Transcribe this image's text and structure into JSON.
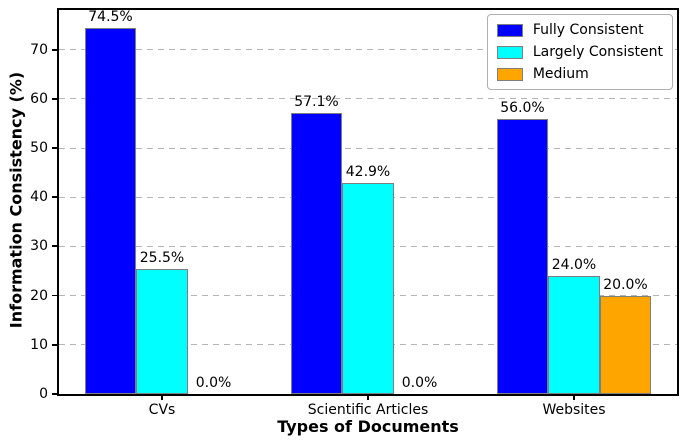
{
  "chart_data": {
    "type": "bar",
    "title": "",
    "xlabel": "Types of Documents",
    "ylabel": "Information Consistency (%)",
    "categories": [
      "CVs",
      "Scientific Articles",
      "Websites"
    ],
    "series": [
      {
        "name": "Fully Consistent",
        "color": "#0000ff",
        "values": [
          74.5,
          57.1,
          56.0
        ],
        "labels": [
          "74.5%",
          "57.1%",
          "56.0%"
        ]
      },
      {
        "name": "Largely Consistent",
        "color": "#00ffff",
        "values": [
          25.5,
          42.9,
          24.0
        ],
        "labels": [
          "25.5%",
          "42.9%",
          "24.0%"
        ]
      },
      {
        "name": "Medium",
        "color": "#ffa500",
        "values": [
          0.0,
          0.0,
          20.0
        ],
        "labels": [
          "0.0%",
          "0.0%",
          "20.0%"
        ]
      }
    ],
    "bar_edge_color": "#7f7f7f",
    "y_ticks": [
      0,
      10,
      20,
      30,
      40,
      50,
      60,
      70
    ],
    "y_tick_labels": [
      "0",
      "10",
      "20",
      "30",
      "40",
      "50",
      "60",
      "70"
    ],
    "ylim": [
      0,
      78.1
    ],
    "grid": {
      "axis": "y",
      "style": "dashed",
      "color": "#b5b5b5"
    },
    "legend": {
      "position": "upper right",
      "entries": [
        "Fully Consistent",
        "Largely Consistent",
        "Medium"
      ]
    }
  }
}
